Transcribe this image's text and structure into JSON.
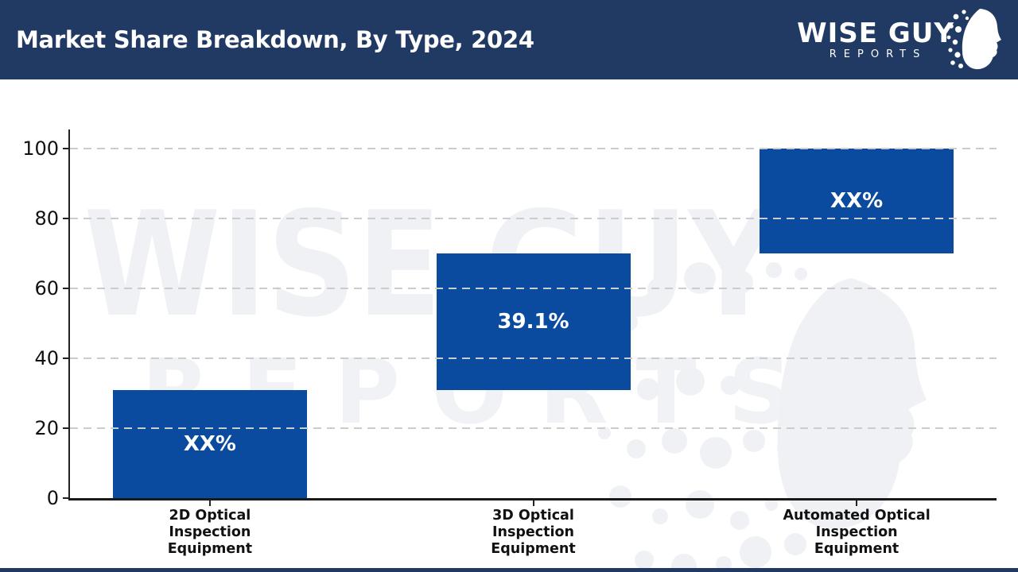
{
  "header": {
    "title": "Market Share Breakdown, By Type, 2024",
    "logo": {
      "brand_line1": "WISE GUY",
      "brand_line2": "REPORTS"
    }
  },
  "watermark": {
    "line1": "WISE GUY",
    "line2": "REPORTS"
  },
  "chart_data": {
    "type": "bar",
    "subtype": "waterfall-stacked-steps",
    "title": "Market Share Breakdown, By Type, 2024",
    "categories": [
      "2D Optical Inspection Equipment",
      "3D Optical Inspection Equipment",
      "Automated Optical Inspection Equipment"
    ],
    "category_label_lines": [
      [
        "2D Optical",
        "Inspection",
        "Equipment"
      ],
      [
        "3D Optical",
        "Inspection",
        "Equipment"
      ],
      [
        "Automated Optical",
        "Inspection",
        "Equipment"
      ]
    ],
    "segments": [
      {
        "category": "2D Optical Inspection Equipment",
        "start": 0,
        "end": 31,
        "value_label": "XX%"
      },
      {
        "category": "3D Optical Inspection Equipment",
        "start": 31,
        "end": 70.1,
        "value_label": "39.1%"
      },
      {
        "category": "Automated Optical Inspection Equipment",
        "start": 70.1,
        "end": 100,
        "value_label": "XX%"
      }
    ],
    "yticks": [
      0,
      20,
      40,
      60,
      80,
      100
    ],
    "ylim": [
      0,
      105
    ],
    "grid": "horizontal-dashed",
    "legend": "none",
    "xlabel": "",
    "ylabel": ""
  },
  "colors": {
    "header_bg": "#213A64",
    "footer_bg": "#213A64",
    "bar": "#0B4B9F",
    "grid": "#CCCCCC",
    "axis": "#1A1A1A",
    "bar_label": "#FFFFFF",
    "watermark": "#F0F1F4"
  }
}
